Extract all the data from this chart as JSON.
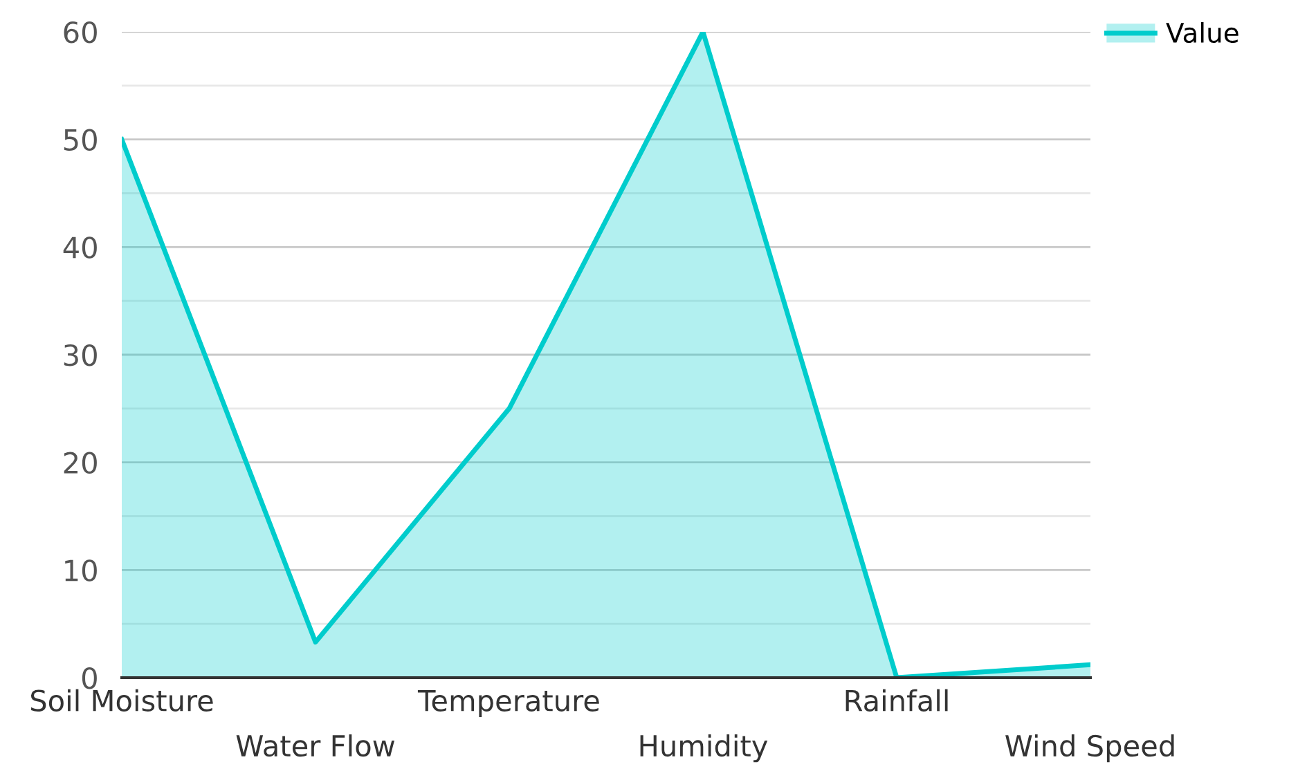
{
  "chart_data": {
    "type": "area",
    "categories": [
      "Soil Moisture",
      "Water Flow",
      "Temperature",
      "Humidity",
      "Rainfall",
      "Wind Speed"
    ],
    "series": [
      {
        "name": "Value",
        "color": "#00cccc",
        "values": [
          50,
          3.3,
          25,
          60,
          0,
          1.2
        ]
      }
    ],
    "ylim": [
      0,
      60
    ],
    "yticks": [
      0,
      10,
      20,
      30,
      40,
      50,
      60
    ],
    "grid": "y",
    "legend": "top right"
  }
}
